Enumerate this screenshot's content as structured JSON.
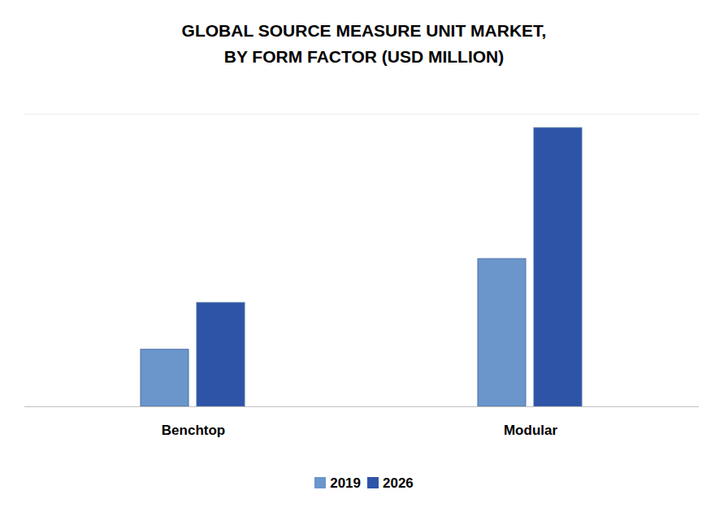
{
  "chart_data": {
    "type": "bar",
    "title": "GLOBAL  SOURCE MEASURE UNIT MARKET,\nBY FORM FACTOR (USD MILLION)",
    "categories": [
      "Benchtop",
      "Modular"
    ],
    "series": [
      {
        "name": "2019",
        "color": "#6a96cc",
        "values": [
          78,
          202
        ]
      },
      {
        "name": "2026",
        "color": "#2e54a8",
        "values": [
          142,
          381
        ]
      }
    ],
    "ylim": [
      0,
      400
    ],
    "tick_labels": "x",
    "grid": false,
    "legend": "bottom"
  }
}
